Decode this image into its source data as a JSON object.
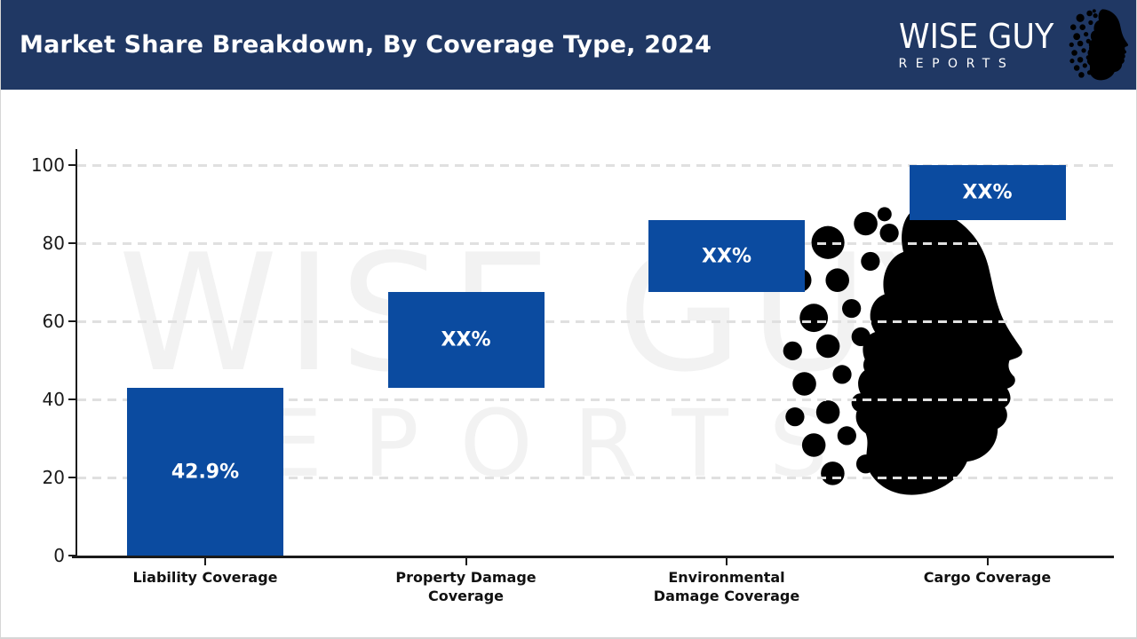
{
  "header": {
    "title": "Market Share Breakdown, By Coverage Type, 2024",
    "logo": {
      "line1": "WISE GUY",
      "line2": "REPORTS"
    }
  },
  "watermark": {
    "line1": "WISE GUY",
    "line2": "REPORTS"
  },
  "colors": {
    "header_bg": "#203864",
    "bar": "#0b4ba0",
    "grid": "#e0e0e0",
    "axis": "#1a1a1a",
    "watermark": "#f2f2f2"
  },
  "chart_data": {
    "type": "bar",
    "subtype": "waterfall",
    "title": "Market Share Breakdown, By Coverage Type, 2024",
    "categories": [
      "Liability Coverage",
      "Property Damage Coverage",
      "Environmental Damage Coverage",
      "Cargo Coverage"
    ],
    "category_lines": [
      [
        "Liability Coverage"
      ],
      [
        "Property Damage",
        "Coverage"
      ],
      [
        "Environmental",
        "Damage Coverage"
      ],
      [
        "Cargo Coverage"
      ]
    ],
    "segments": [
      {
        "label": "42.9%",
        "start": 0,
        "end": 42.9
      },
      {
        "label": "XX%",
        "start": 42.9,
        "end": 67.4
      },
      {
        "label": "XX%",
        "start": 67.4,
        "end": 85.8
      },
      {
        "label": "XX%",
        "start": 85.8,
        "end": 100
      }
    ],
    "yticks": [
      0,
      20,
      40,
      60,
      80,
      100
    ],
    "ylim": [
      0,
      104
    ],
    "xlabel": "",
    "ylabel": "",
    "grid": "dashed-horizontal",
    "legend": "none",
    "bar_color": "#0b4ba0"
  }
}
